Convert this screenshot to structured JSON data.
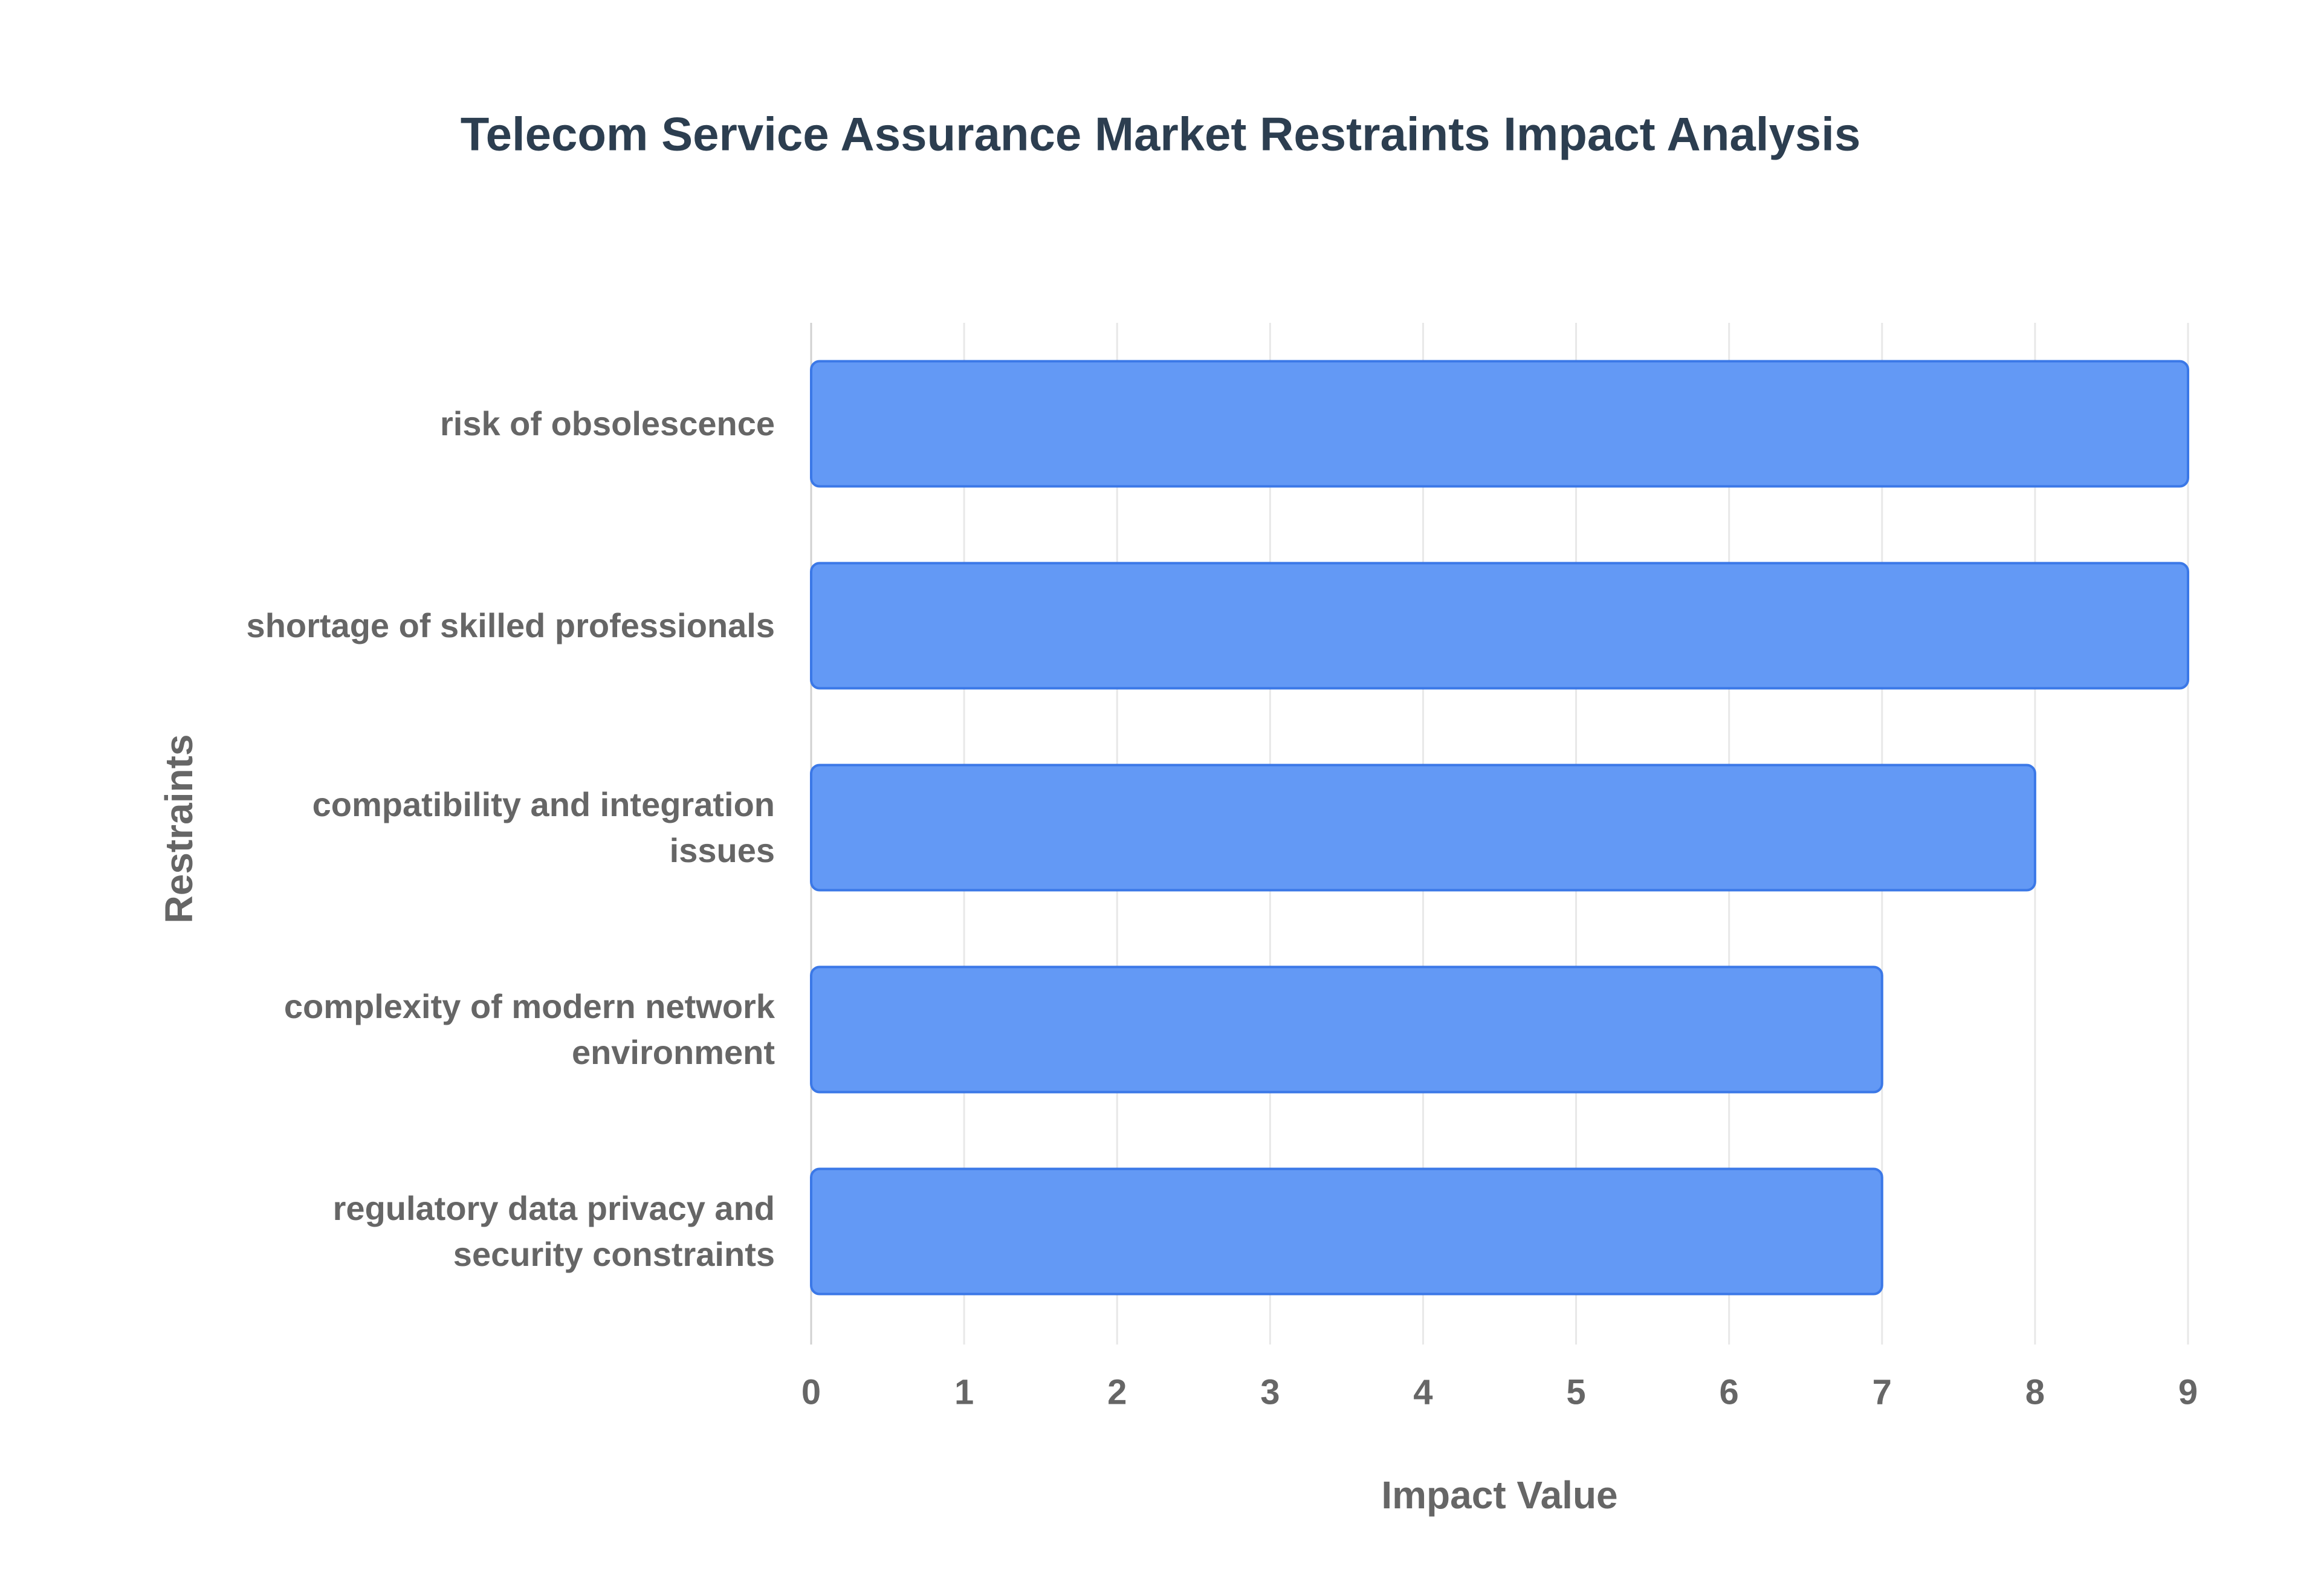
{
  "chart_data": {
    "type": "hbar",
    "title": "Telecom Service Assurance Market Restraints Impact Analysis",
    "x_label": "Impact Value",
    "y_label": "Restraints",
    "categories": [
      "risk of obsolescence",
      "shortage of skilled professionals",
      "compatibility and integration issues",
      "complexity of modern network environment",
      "regulatory data privacy and security constraints"
    ],
    "values": [
      9,
      9,
      8,
      7,
      7
    ],
    "color": "#6399f5",
    "xlim": [
      0,
      9
    ],
    "xticks": [
      0,
      1,
      2,
      3,
      4,
      5,
      6,
      7,
      8,
      9
    ],
    "grid": true
  }
}
